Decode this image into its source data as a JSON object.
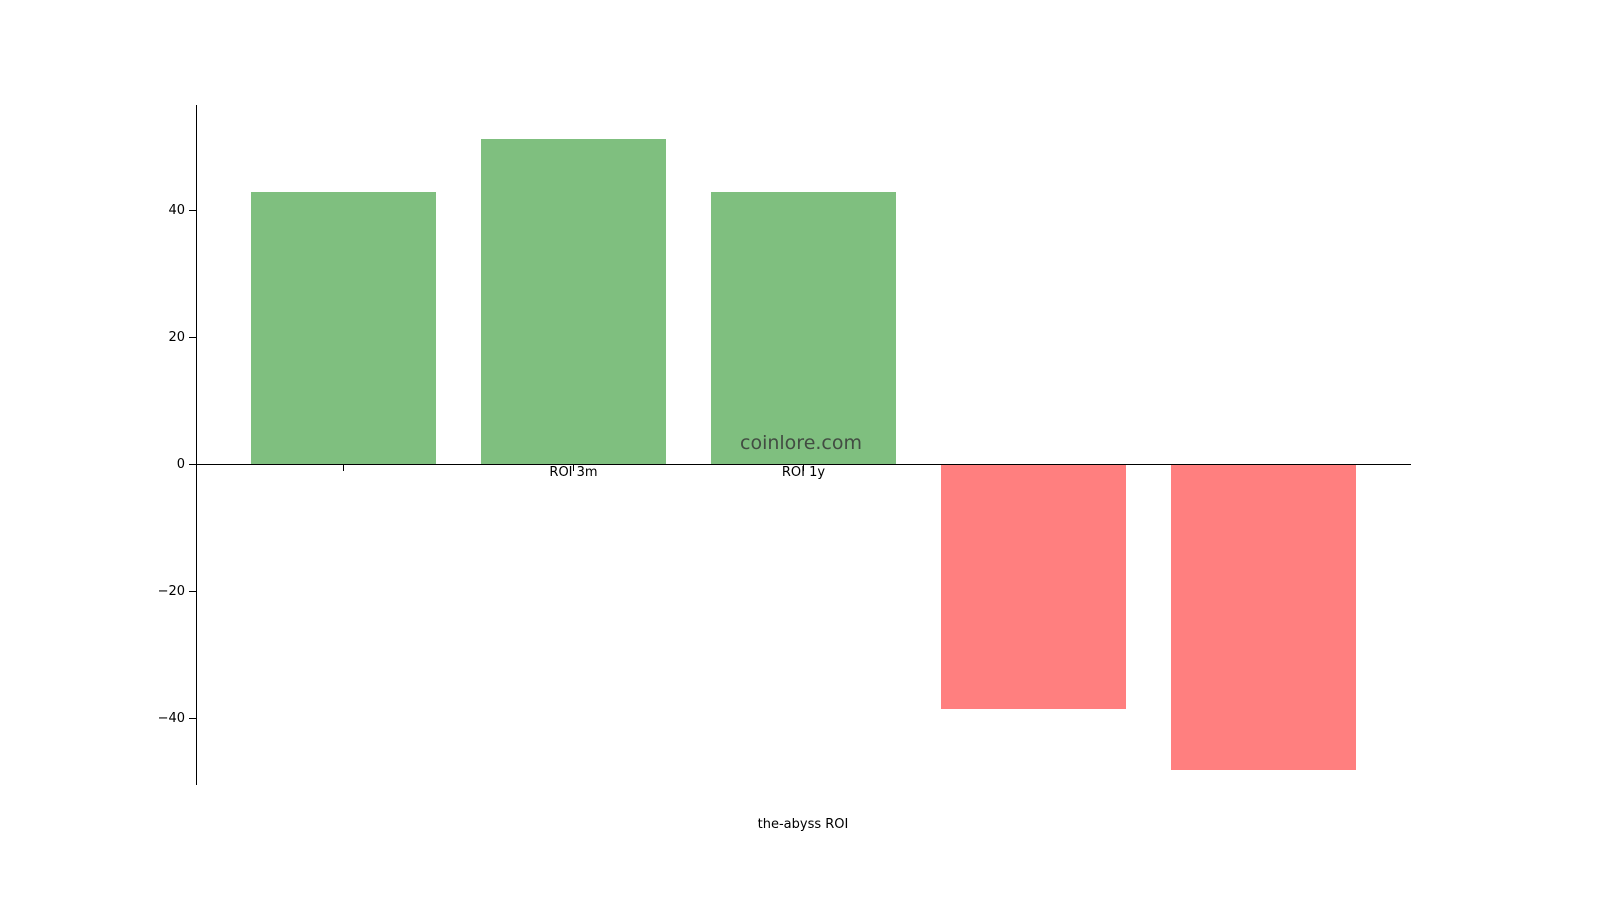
{
  "chart_data": {
    "type": "bar",
    "title": "the-abyss ROI",
    "watermark": "coinlore.com",
    "categories": [
      "",
      "ROI 3m",
      "ROI 1y",
      "",
      ""
    ],
    "values": [
      43,
      51.3,
      43,
      -38.5,
      -48
    ],
    "xlabel": "",
    "ylabel": "",
    "ylim": [
      -50.5,
      56.5
    ],
    "yticks": [
      40,
      20,
      0,
      -20,
      -40
    ],
    "ytick_labels": [
      "40",
      "20",
      "0",
      "−20",
      "−40"
    ],
    "grid": false,
    "legend": "none",
    "colors": {
      "positive_bar": "#7fbf7f",
      "negative_bar": "#ff7f7f",
      "axis": "#000000",
      "watermark_text": "#555555",
      "background": "#ffffff"
    }
  }
}
